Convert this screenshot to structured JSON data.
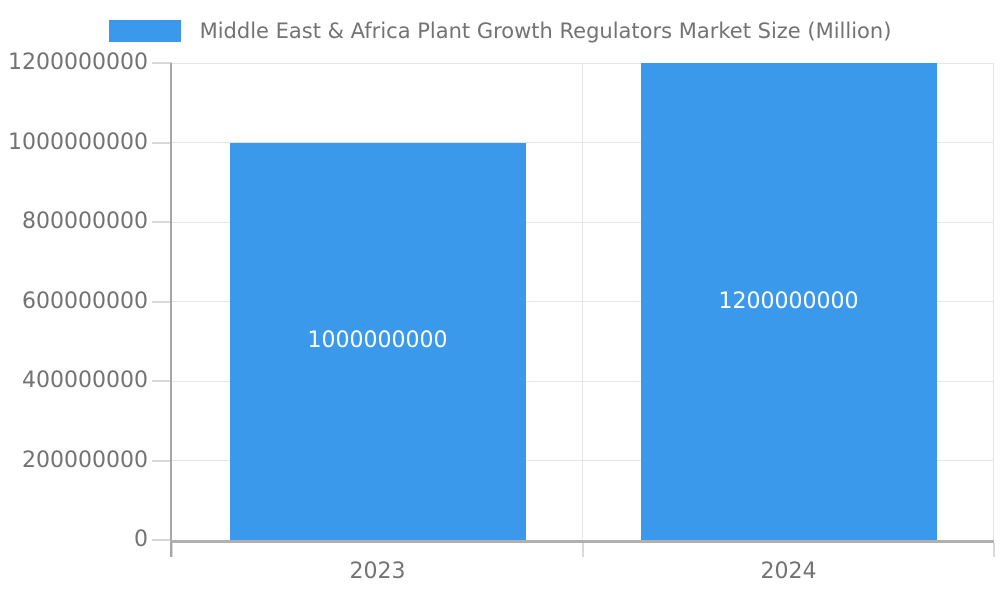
{
  "legend": {
    "label": "Middle East & Africa Plant Growth Regulators Market Size (Million)"
  },
  "chart_data": {
    "type": "bar",
    "title": "Middle East & Africa Plant Growth Regulators Market Size (Million)",
    "categories": [
      "2023",
      "2024"
    ],
    "values": [
      1000000000,
      1200000000
    ],
    "bar_labels": [
      "1000000000",
      "1200000000"
    ],
    "xlabel": "",
    "ylabel": "",
    "ylim": [
      0,
      1200000000
    ],
    "y_ticks": [
      {
        "value": 0,
        "label": "0"
      },
      {
        "value": 200000000,
        "label": "200000000"
      },
      {
        "value": 400000000,
        "label": "400000000"
      },
      {
        "value": 600000000,
        "label": "600000000"
      },
      {
        "value": 800000000,
        "label": "800000000"
      },
      {
        "value": 1000000000,
        "label": "1000000000"
      },
      {
        "value": 1200000000,
        "label": "1200000000"
      }
    ],
    "grid": true,
    "legend_position": "top",
    "colors": {
      "bar": "#3B99EC",
      "text": "#737373",
      "bar_label_text": "#ffffff",
      "gridline": "#e5e5e5",
      "tick": "#d9d9d9",
      "y_axis_line": "#a6a6a6",
      "x_axis_line": "#b0b0b0",
      "background": "#ffffff"
    }
  }
}
